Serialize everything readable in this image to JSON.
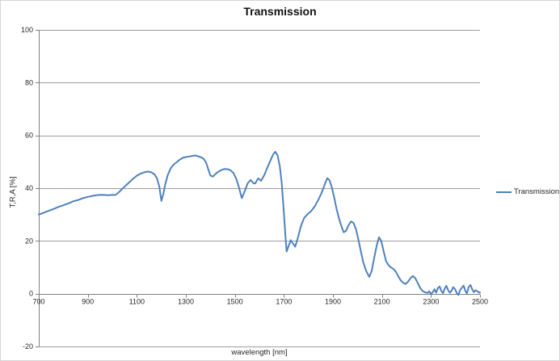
{
  "chart": {
    "title": "Transmission",
    "x_axis_label": "wavelength [nm]",
    "y_axis_label": "T,R,A [%]",
    "legend_label": "Transmission",
    "colors": {
      "series": "#4F81BD",
      "gridline": "#9C9C9C",
      "axis": "#7F7F7F",
      "tick_text": "#262626",
      "title_text": "#111111"
    }
  },
  "chart_data": {
    "type": "line",
    "title": "Transmission",
    "xlabel": "wavelength [nm]",
    "ylabel": "T,R,A [%]",
    "xlim": [
      700,
      2500
    ],
    "ylim": [
      -20,
      100
    ],
    "x_ticks": [
      700,
      900,
      1100,
      1300,
      1500,
      1700,
      1900,
      2100,
      2300,
      2500
    ],
    "y_ticks": [
      -20,
      0,
      20,
      40,
      60,
      80,
      100
    ],
    "grid": true,
    "legend_position": "right",
    "series": [
      {
        "name": "Transmission",
        "color": "#4F81BD",
        "points": [
          [
            700,
            30.0
          ],
          [
            720,
            30.7
          ],
          [
            740,
            31.4
          ],
          [
            760,
            32.1
          ],
          [
            780,
            32.9
          ],
          [
            800,
            33.5
          ],
          [
            820,
            34.2
          ],
          [
            840,
            35.0
          ],
          [
            860,
            35.5
          ],
          [
            880,
            36.2
          ],
          [
            900,
            36.7
          ],
          [
            920,
            37.1
          ],
          [
            940,
            37.4
          ],
          [
            955,
            37.5
          ],
          [
            970,
            37.4
          ],
          [
            985,
            37.3
          ],
          [
            1000,
            37.5
          ],
          [
            1012,
            37.4
          ],
          [
            1025,
            38.3
          ],
          [
            1040,
            39.7
          ],
          [
            1055,
            41.0
          ],
          [
            1070,
            42.3
          ],
          [
            1085,
            43.6
          ],
          [
            1100,
            44.7
          ],
          [
            1115,
            45.5
          ],
          [
            1130,
            46.0
          ],
          [
            1145,
            46.3
          ],
          [
            1160,
            46.0
          ],
          [
            1172,
            45.2
          ],
          [
            1182,
            43.8
          ],
          [
            1192,
            40.5
          ],
          [
            1200,
            35.2
          ],
          [
            1208,
            37.8
          ],
          [
            1216,
            41.5
          ],
          [
            1226,
            45.0
          ],
          [
            1238,
            47.5
          ],
          [
            1250,
            48.9
          ],
          [
            1262,
            49.8
          ],
          [
            1275,
            50.8
          ],
          [
            1288,
            51.5
          ],
          [
            1300,
            51.8
          ],
          [
            1312,
            52.0
          ],
          [
            1325,
            52.2
          ],
          [
            1338,
            52.4
          ],
          [
            1350,
            52.1
          ],
          [
            1362,
            51.7
          ],
          [
            1372,
            51.2
          ],
          [
            1382,
            49.8
          ],
          [
            1392,
            47.0
          ],
          [
            1400,
            44.8
          ],
          [
            1410,
            44.4
          ],
          [
            1420,
            45.3
          ],
          [
            1432,
            46.2
          ],
          [
            1445,
            46.9
          ],
          [
            1458,
            47.3
          ],
          [
            1470,
            47.2
          ],
          [
            1482,
            46.8
          ],
          [
            1494,
            45.8
          ],
          [
            1506,
            43.5
          ],
          [
            1516,
            40.5
          ],
          [
            1528,
            36.2
          ],
          [
            1540,
            38.8
          ],
          [
            1552,
            41.8
          ],
          [
            1564,
            43.1
          ],
          [
            1577,
            41.8
          ],
          [
            1583,
            41.8
          ],
          [
            1595,
            43.7
          ],
          [
            1607,
            42.8
          ],
          [
            1620,
            45.0
          ],
          [
            1632,
            47.7
          ],
          [
            1645,
            50.5
          ],
          [
            1656,
            52.8
          ],
          [
            1665,
            53.8
          ],
          [
            1674,
            52.5
          ],
          [
            1683,
            48.5
          ],
          [
            1691,
            42.0
          ],
          [
            1699,
            32.0
          ],
          [
            1706,
            22.0
          ],
          [
            1711,
            16.0
          ],
          [
            1728,
            20.3
          ],
          [
            1746,
            17.8
          ],
          [
            1758,
            21.5
          ],
          [
            1770,
            25.8
          ],
          [
            1782,
            28.6
          ],
          [
            1795,
            30.0
          ],
          [
            1810,
            31.2
          ],
          [
            1825,
            33.0
          ],
          [
            1840,
            35.5
          ],
          [
            1855,
            38.5
          ],
          [
            1868,
            41.8
          ],
          [
            1877,
            43.8
          ],
          [
            1886,
            43.0
          ],
          [
            1895,
            40.5
          ],
          [
            1905,
            36.5
          ],
          [
            1915,
            32.0
          ],
          [
            1925,
            28.5
          ],
          [
            1935,
            25.5
          ],
          [
            1944,
            23.3
          ],
          [
            1953,
            23.8
          ],
          [
            1963,
            25.8
          ],
          [
            1974,
            27.4
          ],
          [
            1984,
            26.8
          ],
          [
            1994,
            24.5
          ],
          [
            2004,
            20.5
          ],
          [
            2014,
            16.0
          ],
          [
            2024,
            11.8
          ],
          [
            2036,
            8.5
          ],
          [
            2048,
            6.4
          ],
          [
            2058,
            8.5
          ],
          [
            2068,
            13.5
          ],
          [
            2078,
            18.0
          ],
          [
            2088,
            21.4
          ],
          [
            2097,
            20.0
          ],
          [
            2107,
            16.0
          ],
          [
            2117,
            12.3
          ],
          [
            2127,
            10.8
          ],
          [
            2137,
            9.9
          ],
          [
            2147,
            9.4
          ],
          [
            2157,
            8.3
          ],
          [
            2167,
            6.5
          ],
          [
            2177,
            5.0
          ],
          [
            2187,
            4.1
          ],
          [
            2197,
            3.7
          ],
          [
            2207,
            4.6
          ],
          [
            2217,
            6.0
          ],
          [
            2226,
            6.7
          ],
          [
            2236,
            5.9
          ],
          [
            2246,
            4.0
          ],
          [
            2256,
            2.2
          ],
          [
            2266,
            1.0
          ],
          [
            2276,
            0.5
          ],
          [
            2286,
            0.3
          ],
          [
            2293,
            0.9
          ],
          [
            2300,
            -0.2
          ],
          [
            2307,
            0.6
          ],
          [
            2314,
            1.7
          ],
          [
            2321,
            0.4
          ],
          [
            2328,
            2.1
          ],
          [
            2335,
            2.7
          ],
          [
            2342,
            1.1
          ],
          [
            2349,
            0.2
          ],
          [
            2356,
            1.9
          ],
          [
            2363,
            3.0
          ],
          [
            2370,
            1.3
          ],
          [
            2377,
            0.4
          ],
          [
            2384,
            1.1
          ],
          [
            2391,
            2.5
          ],
          [
            2398,
            1.7
          ],
          [
            2405,
            0.3
          ],
          [
            2412,
            -0.5
          ],
          [
            2419,
            1.4
          ],
          [
            2426,
            2.3
          ],
          [
            2433,
            3.1
          ],
          [
            2440,
            1.1
          ],
          [
            2447,
            0.1
          ],
          [
            2454,
            2.6
          ],
          [
            2461,
            3.3
          ],
          [
            2468,
            1.7
          ],
          [
            2475,
            0.6
          ],
          [
            2482,
            1.3
          ],
          [
            2489,
            0.9
          ],
          [
            2496,
            0.4
          ],
          [
            2500,
            0.5
          ]
        ]
      }
    ]
  }
}
